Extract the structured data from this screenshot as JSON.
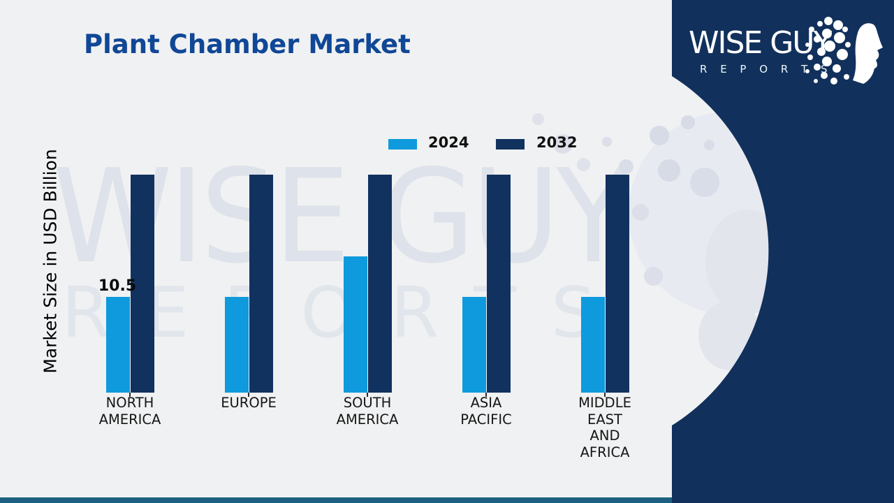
{
  "page": {
    "title": "Plant Chamber Market"
  },
  "chart_data": {
    "type": "bar",
    "title": "Plant Chamber Market",
    "xlabel": "",
    "ylabel": "Market Size in USD Billion",
    "categories": [
      "NORTH AMERICA",
      "EUROPE",
      "SOUTH AMERICA",
      "ASIA PACIFIC",
      "MIDDLE EAST AND AFRICA"
    ],
    "category_label_lines": [
      [
        "NORTH",
        "AMERICA"
      ],
      [
        "EUROPE"
      ],
      [
        "SOUTH",
        "AMERICA"
      ],
      [
        "ASIA",
        "PACIFIC"
      ],
      [
        "MIDDLE",
        "EAST",
        "AND",
        "AFRICA"
      ]
    ],
    "series": [
      {
        "name": "2024",
        "color": "#0E9ADC",
        "values": [
          10.5,
          10.5,
          15,
          10.5,
          10.5
        ]
      },
      {
        "name": "2032",
        "color": "#11325F",
        "values": [
          24,
          24,
          24,
          24,
          24
        ]
      }
    ],
    "data_labels": [
      {
        "series": "2024",
        "category": "NORTH AMERICA",
        "text": "10.5"
      }
    ],
    "ylim": [
      0,
      26
    ],
    "grid": false,
    "legend_position": "top-center"
  },
  "legend": {
    "items": [
      {
        "label": "2024",
        "color": "#0E9ADC"
      },
      {
        "label": "2032",
        "color": "#11325F"
      }
    ]
  },
  "watermark": {
    "line1": "WISE GUY",
    "line2": "R E P O R T S"
  },
  "logo": {
    "title": "WISE GUY",
    "subtitle": "R E P O R T S",
    "icon": "wiseguy-face-icon"
  },
  "colors": {
    "background": "#F0F1F2",
    "title_text": "#104796",
    "bar_2024": "#0E9ADC",
    "bar_2032": "#11325F",
    "logo_panel_navy": "#11305C",
    "bottom_strip_teal": "#1D5F80"
  }
}
